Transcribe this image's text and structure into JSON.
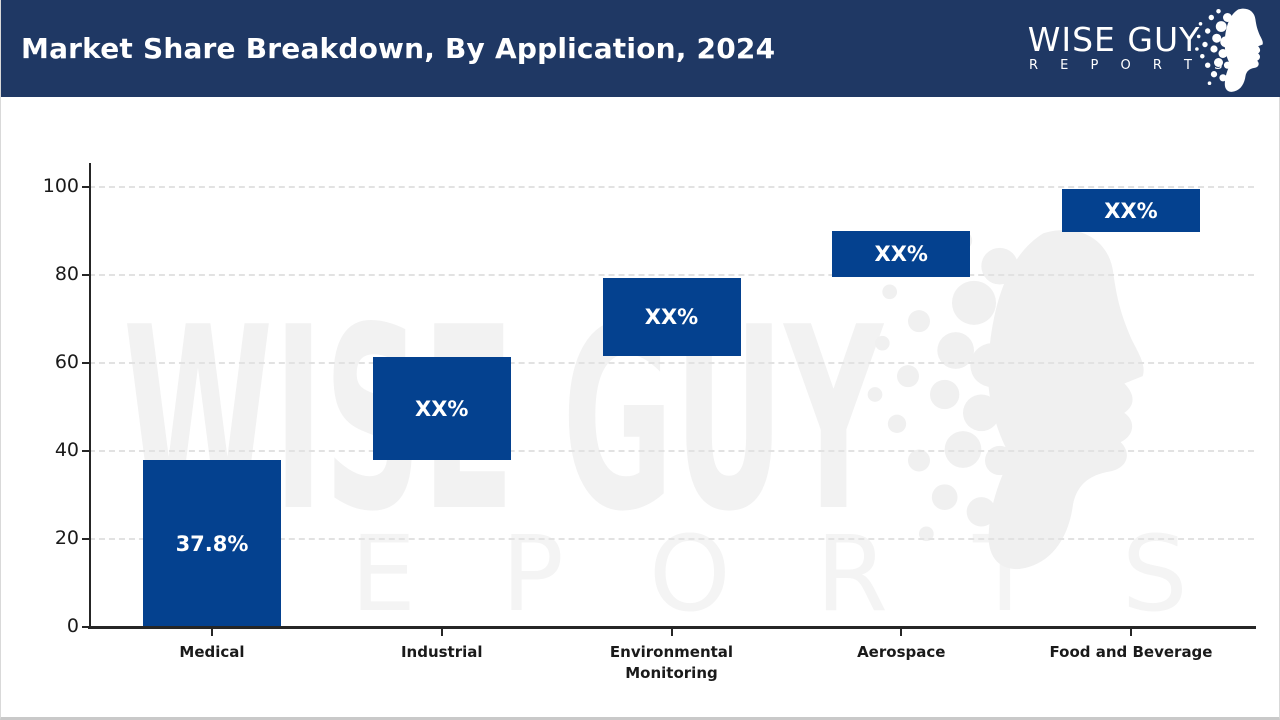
{
  "header": {
    "title": "Market Share Breakdown, By Application, 2024",
    "logo": {
      "line1": "WISE GUY",
      "line2": "R E P O R T S"
    }
  },
  "watermark": {
    "line1": "WISE GUY",
    "line2": "R E P O R T S"
  },
  "colors": {
    "header_bg": "#1f3864",
    "bar": "#04418f",
    "bar_label": "#ffffff",
    "gridline": "#e2e2e2",
    "axis": "#262626",
    "watermark": "#f2f2f2"
  },
  "chart_data": {
    "type": "bar",
    "subtype": "waterfall",
    "title": "Market Share Breakdown, By Application, 2024",
    "xlabel": "",
    "ylabel": "",
    "categories": [
      "Medical",
      "Industrial",
      "Environmental Monitoring",
      "Aerospace",
      "Food and Beverage"
    ],
    "segments": [
      {
        "category": "Medical",
        "start": 0,
        "end": 37.8,
        "label": "37.8%"
      },
      {
        "category": "Industrial",
        "start": 37.8,
        "end": 61.4,
        "label": "XX%"
      },
      {
        "category": "Environmental Monitoring",
        "start": 61.5,
        "end": 79.2,
        "label": "XX%"
      },
      {
        "category": "Aerospace",
        "start": 79.4,
        "end": 89.9,
        "label": "XX%"
      },
      {
        "category": "Food and Beverage",
        "start": 89.7,
        "end": 99.4,
        "label": "XX%"
      }
    ],
    "yticks": [
      0,
      20,
      40,
      60,
      80,
      100
    ],
    "ylim": [
      0,
      105
    ],
    "grid": "horizontal-dashed",
    "legend": "none",
    "bar_color": "#04418f"
  }
}
